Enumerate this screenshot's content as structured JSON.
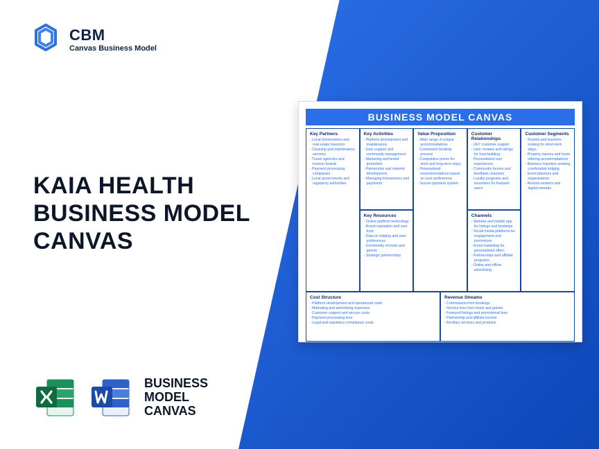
{
  "logo": {
    "main": "CBM",
    "sub": "Canvas Business Model"
  },
  "title_lines": [
    "KAIA HEALTH",
    "BUSINESS MODEL",
    "CANVAS"
  ],
  "footer_label_lines": [
    "BUSINESS",
    "MODEL",
    "CANVAS"
  ],
  "colors": {
    "brand_blue": "#2b6fe8",
    "brand_blue_dark": "#0d47b8",
    "ink": "#0b1628",
    "excel_green": "#1e8e5b",
    "excel_green_dark": "#0e6b42",
    "word_blue": "#2f62c8",
    "word_blue_dark": "#1b4aa8"
  },
  "canvas": {
    "title": "BUSINESS MODEL CANVAS",
    "blocks": {
      "key_partners": {
        "heading": "Key Partners",
        "items": [
          "Local homeowners and real estate investors",
          "Cleaning and maintenance services",
          "Travel agencies and tourism boards",
          "Payment processing companies",
          "Local governments and regulatory authorities"
        ]
      },
      "key_activities": {
        "heading": "Key Activities",
        "items": [
          "Platform development and maintenance",
          "User support and community management",
          "Marketing and brand promotion",
          "Partnership and network development",
          "Managing transactions and payments"
        ]
      },
      "key_resources": {
        "heading": "Key Resources",
        "items": [
          "Online platform technology",
          "Brand reputation and user trust",
          "Data on lodging and user preferences",
          "Community of hosts and guests",
          "Strategic partnerships"
        ]
      },
      "value_proposition": {
        "heading": "Value Proposition",
        "items": [
          "Wide range of unique accommodations",
          "Convenient booking process",
          "Competitive prices for short and long-term stays",
          "Personalized recommendations based on user preferences",
          "Secure payment system"
        ]
      },
      "customer_relationships": {
        "heading": "Customer Relationships",
        "items": [
          "24/7 customer support",
          "User reviews and ratings for trust-building",
          "Personalized user experiences",
          "Community forums and feedback channels",
          "Loyalty programs and incentives for frequent users"
        ]
      },
      "channels": {
        "heading": "Channels",
        "items": [
          "Website and mobile app for listings and bookings",
          "Social media platforms for engagement and promotions",
          "Email marketing for personalized offers",
          "Partnerships and affiliate programs",
          "Online and offline advertising"
        ]
      },
      "customer_segments": {
        "heading": "Customer Segments",
        "items": [
          "Tourists and travelers looking for short-term stays",
          "Property owners and hosts offering accommodations",
          "Business travelers seeking comfortable lodging",
          "Event planners and organizations",
          "Remote workers and digital nomads"
        ]
      },
      "cost_structure": {
        "heading": "Cost Structure",
        "items": [
          "Platform development and operational costs",
          "Marketing and advertising expenses",
          "Customer support and service costs",
          "Payment processing fees",
          "Legal and regulatory compliance costs"
        ]
      },
      "revenue_streams": {
        "heading": "Revenue Streams",
        "items": [
          "Commission from bookings",
          "Service fees from hosts and guests",
          "Featured listings and promotional fees",
          "Partnership and affiliate income",
          "Ancillary services and products"
        ]
      }
    }
  }
}
